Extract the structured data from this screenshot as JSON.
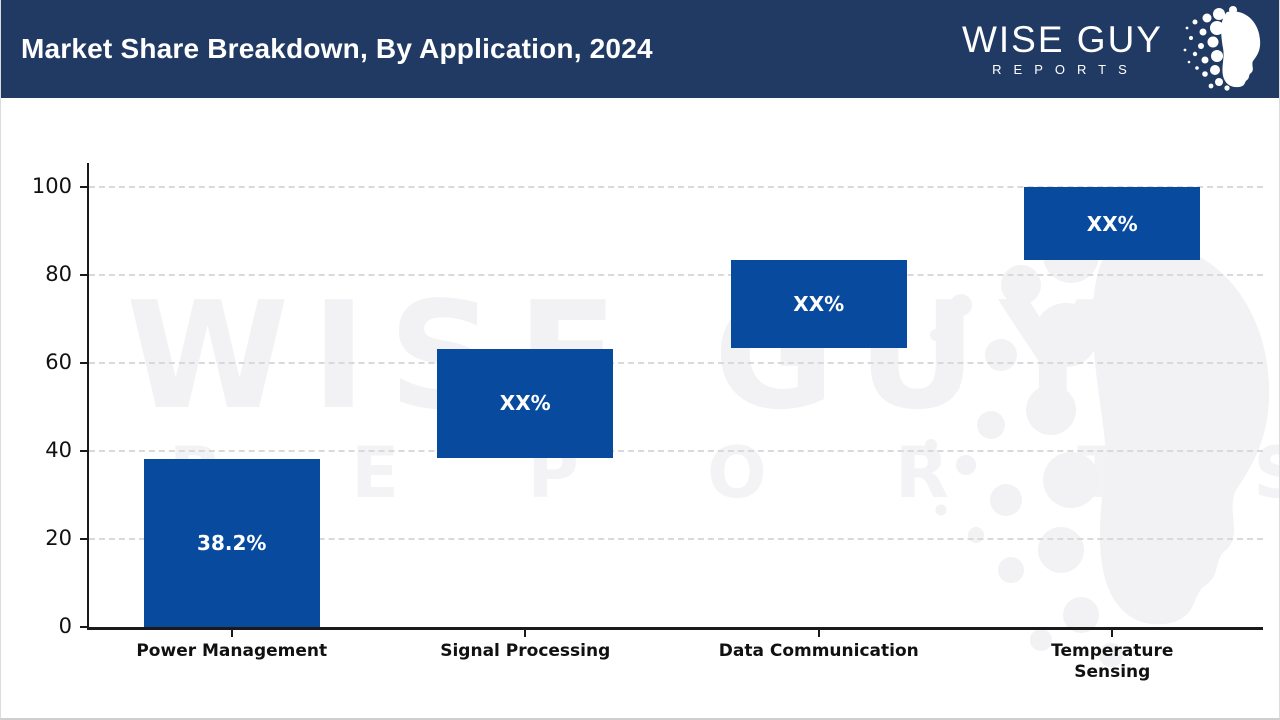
{
  "header": {
    "title": "Market Share Breakdown, By Application, 2024",
    "bg_color": "#213a64",
    "logo": {
      "line1": "WISE GUY",
      "line2": "REPORTS"
    }
  },
  "watermark": {
    "line1": "WISE GUY",
    "line2": "R E P O R T S"
  },
  "chart_data": {
    "type": "bar",
    "subtype": "waterfall",
    "title": "Market Share Breakdown, By Application, 2024",
    "xlabel": "",
    "ylabel": "",
    "ylim": [
      0,
      100
    ],
    "y_ticks": [
      0,
      20,
      40,
      60,
      80,
      100
    ],
    "grid": "horizontal-dashed",
    "legend": "none",
    "bar_color": "#084a9e",
    "value_label_color": "#ffffff",
    "categories": [
      "Power Management",
      "Signal Processing",
      "Data Communication",
      "Temperature Sensing"
    ],
    "segments": [
      {
        "category": "Power Management",
        "tick_label": "Power Management",
        "start": 0,
        "end": 38.2,
        "label": "38.2%"
      },
      {
        "category": "Signal Processing",
        "tick_label": "Signal Processing",
        "start": 38.5,
        "end": 63.2,
        "label": "XX%"
      },
      {
        "category": "Data Communication",
        "tick_label": "Data Communication",
        "start": 63.4,
        "end": 83.4,
        "label": "XX%"
      },
      {
        "category": "Temperature Sensing",
        "tick_label": "Temperature\nSensing",
        "start": 83.4,
        "end": 100,
        "label": "XX%"
      }
    ]
  }
}
